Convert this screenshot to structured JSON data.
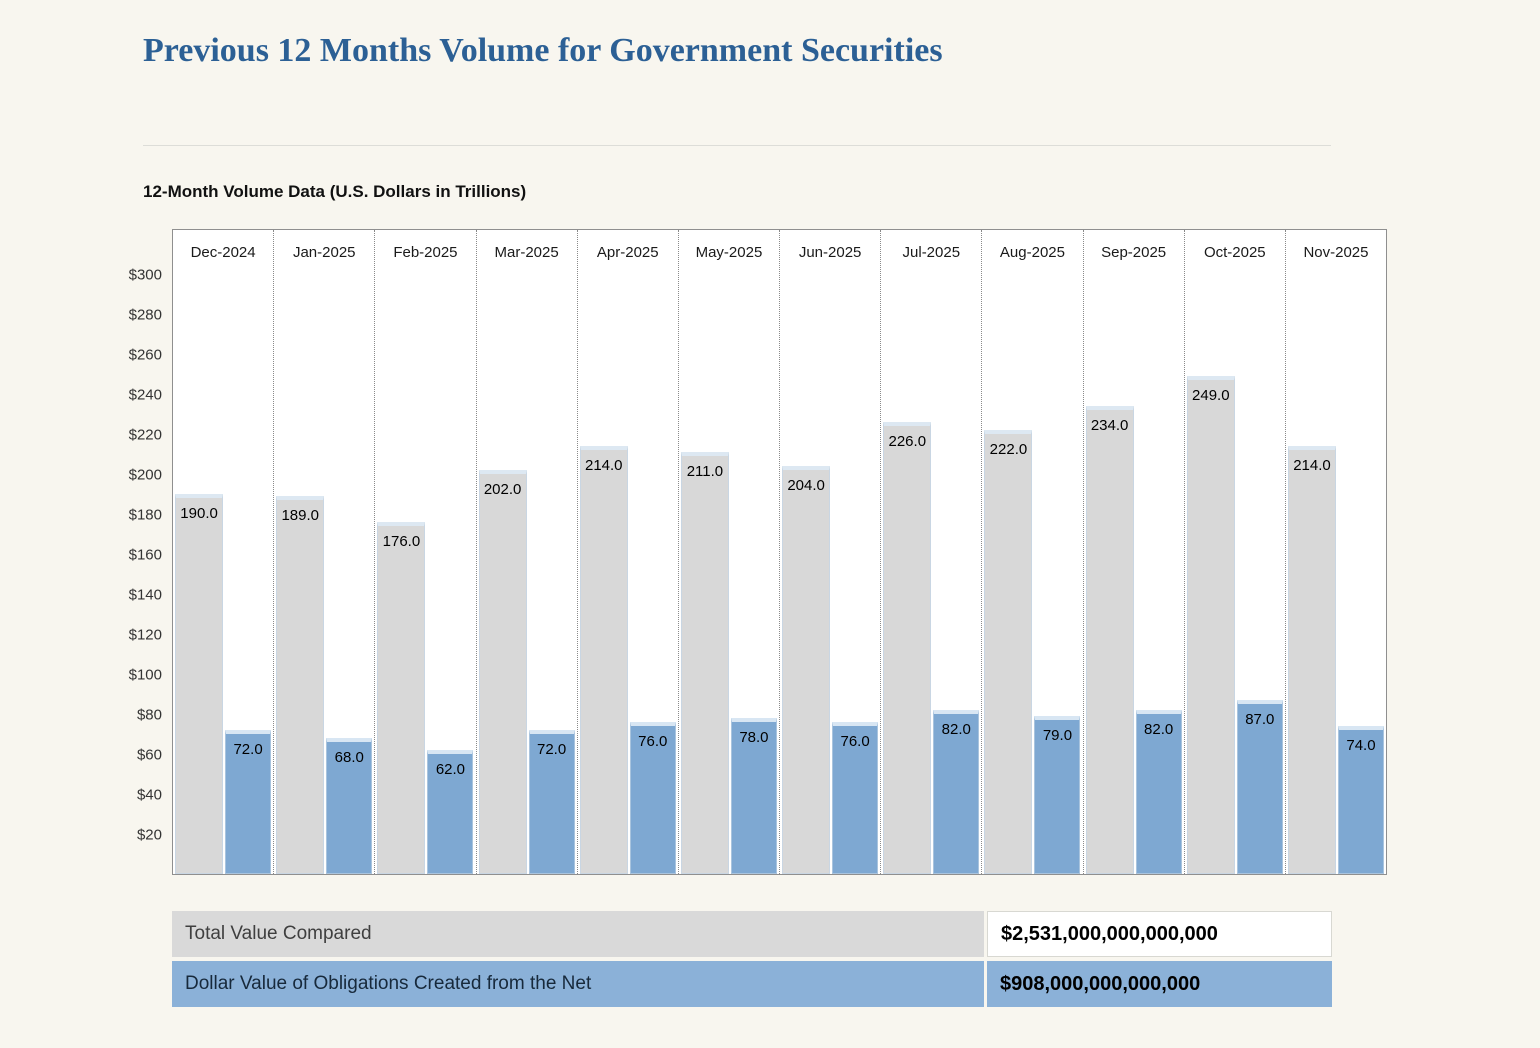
{
  "header": {
    "title": "Previous 12 Months Volume for Government Securities"
  },
  "chart": {
    "subtitle": "12-Month Volume Data (U.S. Dollars in Trillions)"
  },
  "chart_data": {
    "type": "bar",
    "title": "12-Month Volume Data (U.S. Dollars in Trillions)",
    "categories": [
      "Dec-2024",
      "Jan-2025",
      "Feb-2025",
      "Mar-2025",
      "Apr-2025",
      "May-2025",
      "Jun-2025",
      "Jul-2025",
      "Aug-2025",
      "Sep-2025",
      "Oct-2025",
      "Nov-2025"
    ],
    "series": [
      {
        "name": "Total Value Compared",
        "color": "#d8d8d8",
        "values": [
          190,
          189,
          176,
          202,
          214,
          211,
          204,
          226,
          222,
          234,
          249,
          214
        ]
      },
      {
        "name": "Dollar Value of Obligations Created from the Net",
        "color": "#7ea8d2",
        "values": [
          72,
          68,
          62,
          72,
          76,
          78,
          76,
          82,
          79,
          82,
          87,
          74
        ]
      }
    ],
    "y_ticks": [
      300,
      280,
      260,
      240,
      220,
      200,
      180,
      160,
      140,
      120,
      100,
      80,
      60,
      40,
      20
    ],
    "y_tick_prefix": "$",
    "ylim": [
      0,
      322
    ],
    "value_decimals": 1,
    "grid": "dotted-vertical-column-separators",
    "legend_position": "bottom-table"
  },
  "summary_table": {
    "rows": [
      {
        "label": "Total Value Compared",
        "value": "$2,531,000,000,000,000"
      },
      {
        "label": "Dollar Value of Obligations Created from the Net",
        "value": "$908,000,000,000,000"
      }
    ]
  }
}
